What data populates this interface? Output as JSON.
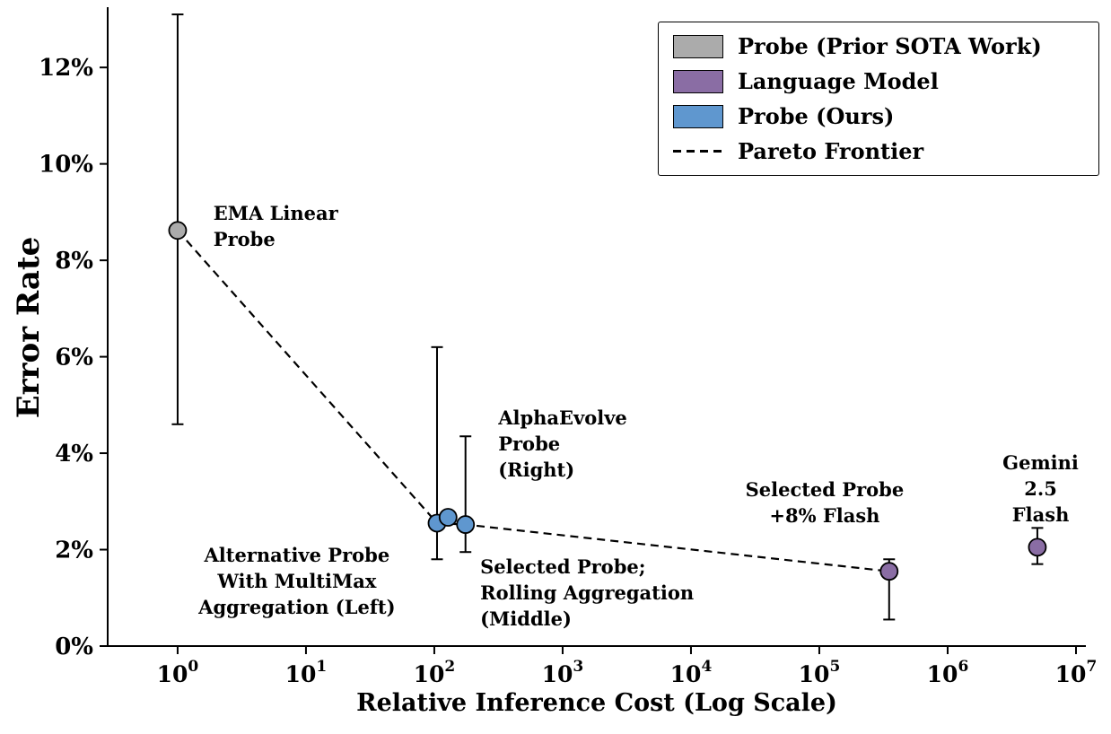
{
  "chart_data": {
    "type": "scatter",
    "title": "",
    "xlabel": "Relative Inference Cost (Log Scale)",
    "ylabel": "Error Rate",
    "x_scale": "log",
    "grid": false,
    "legend_position": "upper right",
    "xlog_range": [
      -0.545,
      7.077
    ],
    "ylim": [
      0,
      13.25
    ],
    "xticks": {
      "base": 10,
      "exponents": [
        0,
        1,
        2,
        3,
        4,
        5,
        6,
        7
      ]
    },
    "yticks": [
      {
        "v": 0,
        "label": "0%"
      },
      {
        "v": 2,
        "label": "2%"
      },
      {
        "v": 4,
        "label": "4%"
      },
      {
        "v": 6,
        "label": "6%"
      },
      {
        "v": 8,
        "label": "8%"
      },
      {
        "v": 10,
        "label": "10%"
      },
      {
        "v": 12,
        "label": "12%"
      }
    ],
    "colors": {
      "probe_prior_sota": "#ababab",
      "language_model": "#8a6da4",
      "probe_ours": "#5f97cf",
      "errorbar": "#000000",
      "marker_edge": "#000000",
      "frontier": "#000000"
    },
    "series": [
      {
        "name": "Probe (Prior SOTA Work)",
        "color": "#ababab",
        "points": [
          {
            "x": 1,
            "y": 8.62,
            "err": {
              "lo": 4.6,
              "hi": 13.1
            },
            "label": "EMA Linear Probe"
          }
        ]
      },
      {
        "name": "Probe (Ours)",
        "color": "#5f97cf",
        "points": [
          {
            "x": 105,
            "y": 2.55,
            "err": {
              "lo": 1.8,
              "hi": 6.2
            },
            "label": "Alternative Probe With MultiMax Aggregation (Left)"
          },
          {
            "x": 128,
            "y": 2.67,
            "err": null,
            "label": "Selected Probe; Rolling Aggregation (Middle)"
          },
          {
            "x": 175,
            "y": 2.52,
            "err": {
              "lo": 1.95,
              "hi": 4.35
            },
            "label": "AlphaEvolve Probe (Right)"
          }
        ]
      },
      {
        "name": "Language Model",
        "color": "#8a6da4",
        "points": [
          {
            "x": 350000,
            "y": 1.55,
            "err": {
              "lo": 0.55,
              "hi": 1.8
            },
            "label": "Selected Probe +8% Flash"
          },
          {
            "x": 5000000,
            "y": 2.05,
            "err": {
              "lo": 1.7,
              "hi": 2.45
            },
            "label": "Gemini 2.5 Flash"
          }
        ]
      }
    ],
    "pareto_frontier": {
      "label": "Pareto Frontier",
      "points": [
        [
          1,
          8.62
        ],
        [
          105,
          2.55
        ],
        [
          175,
          2.52
        ],
        [
          350000,
          1.55
        ]
      ]
    },
    "legend": [
      {
        "label": "Probe (Prior SOTA Work)",
        "swatch": "patch",
        "color": "#ababab"
      },
      {
        "label": "Language Model",
        "swatch": "patch",
        "color": "#8a6da4"
      },
      {
        "label": "Probe (Ours)",
        "swatch": "patch",
        "color": "#5f97cf"
      },
      {
        "label": "Pareto Frontier",
        "swatch": "dashed-line",
        "color": "#000000"
      }
    ],
    "annotations": [
      {
        "text": "EMA Linear\nProbe",
        "x": 1.9,
        "y": 9.25,
        "align": "left"
      },
      {
        "text": "AlphaEvolve\nProbe\n(Right)",
        "x": 315,
        "y": 5.0,
        "align": "left"
      },
      {
        "text": "Alternative Probe\nWith MultiMax\nAggregation (Left)",
        "x": 8.5,
        "y": 2.15,
        "align": "center"
      },
      {
        "text": "Selected Probe;\nRolling Aggregation\n(Middle)",
        "x": 228,
        "y": 1.92,
        "align": "left"
      },
      {
        "text": "Selected Probe\n+8% Flash",
        "x": 110000,
        "y": 3.52,
        "align": "center"
      },
      {
        "text": "Gemini 2.5\nFlash",
        "x": 5300000,
        "y": 4.08,
        "align": "center"
      }
    ]
  }
}
